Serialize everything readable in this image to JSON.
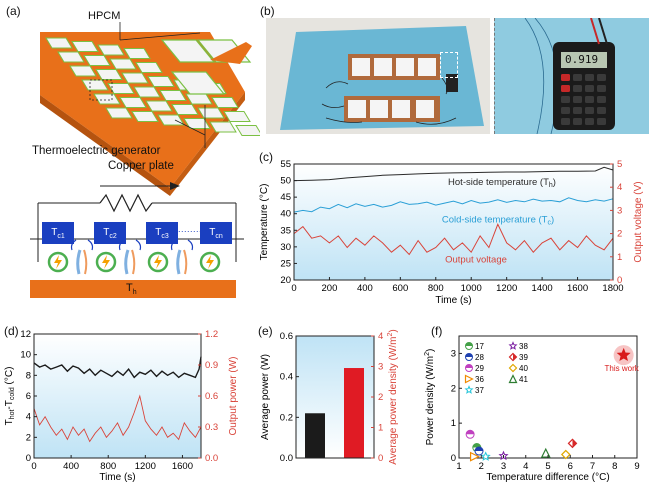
{
  "panel_labels": {
    "a": "(a)",
    "b": "(b)",
    "c": "(c)",
    "d": "(d)",
    "e": "(e)",
    "f": "(f)"
  },
  "panel_a": {
    "hpcm_label": "HPCM",
    "teg_label": "Thermoelectric generator",
    "copper_label": "Copper plate",
    "cells": [
      "T",
      "T",
      "T",
      "T"
    ],
    "cell_subs": [
      "c1",
      "c2",
      "c3",
      "cn"
    ],
    "cell_dots": "........",
    "hot_label": "T",
    "hot_sub": "h",
    "colors": {
      "cell": "#1a3fc0",
      "plate": "#e8701a",
      "lightning_ring": "#4caf50",
      "lightning": "#f5a000"
    }
  },
  "panel_b": {
    "display_value": "0.919",
    "colors": {
      "mat": "#6ab7d4",
      "wall": "#e6e4df",
      "copper": "#b06a3c"
    }
  },
  "chart_data": [
    {
      "id": "c",
      "type": "line",
      "xlabel": "Time (s)",
      "ylabel": "Temperature (°C)",
      "y2label": "Output voltage (V)",
      "xlim": [
        0,
        1800
      ],
      "ylim": [
        20,
        55
      ],
      "y2lim": [
        0,
        5
      ],
      "xticks": [
        0,
        200,
        400,
        600,
        800,
        1000,
        1200,
        1400,
        1600,
        1800
      ],
      "yticks": [
        20,
        25,
        30,
        35,
        40,
        45,
        50,
        55
      ],
      "y2ticks": [
        0,
        1,
        2,
        3,
        4,
        5
      ],
      "series": [
        {
          "name": "Hot-side temperature (T",
          "sub": "h",
          "close": ")",
          "axis": "left",
          "color": "#2b2b2b",
          "x": [
            0,
            100,
            200,
            300,
            400,
            500,
            600,
            700,
            800,
            900,
            1000,
            1100,
            1200,
            1300,
            1400,
            1500,
            1600,
            1700,
            1750,
            1800
          ],
          "y": [
            50.0,
            50.1,
            50.3,
            50.8,
            51.2,
            51.6,
            51.8,
            52.0,
            52.2,
            52.3,
            52.4,
            52.5,
            52.6,
            52.6,
            52.7,
            52.8,
            52.8,
            52.9,
            54.0,
            53.2
          ]
        },
        {
          "name": "Cold-side temperature (T",
          "sub": "c",
          "close": ")",
          "axis": "left",
          "color": "#2a9fd6",
          "x": [
            0,
            50,
            100,
            150,
            200,
            250,
            300,
            350,
            400,
            450,
            500,
            550,
            600,
            650,
            700,
            750,
            800,
            850,
            900,
            950,
            1000,
            1050,
            1100,
            1150,
            1200,
            1250,
            1300,
            1350,
            1400,
            1450,
            1500,
            1550,
            1600,
            1650,
            1700,
            1750,
            1800
          ],
          "y": [
            40.5,
            41.0,
            40.6,
            42.0,
            41.5,
            42.8,
            41.8,
            43.0,
            42.2,
            42.8,
            42.0,
            42.5,
            43.6,
            42.8,
            43.0,
            43.5,
            42.6,
            43.2,
            43.8,
            43.0,
            44.0,
            43.2,
            43.5,
            44.2,
            43.4,
            44.0,
            43.6,
            44.4,
            43.8,
            44.0,
            43.6,
            44.8,
            44.0,
            43.6,
            44.2,
            43.8,
            44.5
          ]
        },
        {
          "name": "Output voltage",
          "axis": "right",
          "color": "#d9443a",
          "x": [
            0,
            50,
            100,
            150,
            200,
            250,
            300,
            350,
            400,
            450,
            500,
            550,
            600,
            650,
            700,
            750,
            800,
            850,
            900,
            950,
            1000,
            1050,
            1100,
            1150,
            1200,
            1250,
            1300,
            1350,
            1400,
            1450,
            1500,
            1550,
            1600,
            1650,
            1700,
            1750,
            1800
          ],
          "y": [
            2.0,
            2.3,
            1.8,
            1.9,
            1.6,
            1.9,
            1.4,
            1.8,
            1.5,
            1.9,
            1.6,
            1.2,
            1.5,
            1.1,
            1.7,
            1.2,
            1.4,
            1.8,
            1.3,
            1.6,
            1.2,
            1.9,
            1.4,
            2.4,
            1.6,
            1.3,
            1.7,
            1.2,
            1.6,
            1.8,
            1.3,
            1.7,
            1.4,
            1.9,
            1.5,
            1.3,
            1.8
          ]
        }
      ],
      "background": "#e6f4fb"
    },
    {
      "id": "d",
      "type": "line",
      "xlabel": "Time (s)",
      "ylabel": "T",
      "ylabel_sub1": "hot",
      "ylabel_mid": "-T",
      "ylabel_sub2": "cold",
      "ylabel_unit": " (°C)",
      "y2label": "Output power (W)",
      "xlim": [
        0,
        1800
      ],
      "ylim": [
        0,
        12
      ],
      "y2lim": [
        0.0,
        1.2
      ],
      "xticks": [
        0,
        400,
        800,
        1200,
        1600
      ],
      "yticks": [
        0,
        2,
        4,
        6,
        8,
        10,
        12
      ],
      "y2ticks": [
        0.0,
        0.3,
        0.6,
        0.9,
        1.2
      ],
      "y2ticklabels": [
        "0.0",
        "0.3",
        "0.6",
        "0.9",
        "1.2"
      ],
      "series": [
        {
          "name": "",
          "axis": "left",
          "color": "#1b1b1b",
          "x": [
            0,
            60,
            120,
            180,
            240,
            300,
            360,
            420,
            480,
            540,
            600,
            660,
            720,
            780,
            840,
            900,
            960,
            1020,
            1080,
            1140,
            1200,
            1260,
            1320,
            1380,
            1440,
            1500,
            1560,
            1620,
            1680,
            1740,
            1780,
            1800
          ],
          "y": [
            9.2,
            8.8,
            9.0,
            8.6,
            8.8,
            9.0,
            8.4,
            8.9,
            8.7,
            8.2,
            8.6,
            8.0,
            8.5,
            8.2,
            7.9,
            8.4,
            8.0,
            8.6,
            7.8,
            8.3,
            8.1,
            8.5,
            7.9,
            8.4,
            8.0,
            8.3,
            7.8,
            8.2,
            8.0,
            7.8,
            8.6,
            9.8
          ]
        },
        {
          "name": "",
          "axis": "right",
          "color": "#d9443a",
          "x": [
            0,
            60,
            120,
            180,
            240,
            300,
            360,
            420,
            480,
            540,
            600,
            660,
            720,
            780,
            840,
            900,
            960,
            1020,
            1080,
            1140,
            1200,
            1260,
            1320,
            1380,
            1440,
            1500,
            1560,
            1620,
            1680,
            1740,
            1800
          ],
          "y": [
            0.48,
            0.32,
            0.4,
            0.3,
            0.22,
            0.28,
            0.18,
            0.3,
            0.22,
            0.28,
            0.16,
            0.24,
            0.3,
            0.2,
            0.26,
            0.34,
            0.22,
            0.3,
            0.44,
            0.6,
            0.36,
            0.28,
            0.22,
            0.3,
            0.2,
            0.24,
            0.18,
            0.34,
            0.26,
            0.2,
            0.3
          ]
        }
      ],
      "background": "#e6f4fb"
    },
    {
      "id": "e",
      "type": "bar",
      "categories": [
        "Average power",
        "Average power density"
      ],
      "ylabel": "Average power (W)",
      "y2label": "Average power density (W/m",
      "y2label_sup": "2",
      "y2label_close": ")",
      "ylim": [
        0,
        0.6
      ],
      "y2lim": [
        0,
        4
      ],
      "yticks": [
        0.0,
        0.2,
        0.4,
        0.6
      ],
      "yticklabels": [
        "0.0",
        "0.2",
        "0.4",
        "0.6"
      ],
      "y2ticks": [
        0,
        1,
        2,
        3,
        4
      ],
      "values": [
        0.22,
        2.95
      ],
      "colors": [
        "#1b1b1b",
        "#e01b24"
      ],
      "background": "#e6f4fb"
    },
    {
      "id": "f",
      "type": "scatter",
      "xlabel": "Temperature difference (°C)",
      "ylabel": "Power density (W/m",
      "ylabel_sup": "2",
      "ylabel_close": ")",
      "xlim": [
        1,
        9
      ],
      "ylim": [
        0,
        3.5
      ],
      "xticks": [
        1,
        2,
        3,
        4,
        5,
        6,
        7,
        8,
        9
      ],
      "yticks": [
        0,
        1,
        2,
        3
      ],
      "points": [
        {
          "ref": "17",
          "x": 1.8,
          "y": 0.3,
          "color": "#43a047",
          "marker": "circle-half"
        },
        {
          "ref": "28",
          "x": 1.9,
          "y": 0.2,
          "color": "#1e40b0",
          "marker": "circle-half"
        },
        {
          "ref": "29",
          "x": 1.5,
          "y": 0.68,
          "color": "#c040c0",
          "marker": "circle-half"
        },
        {
          "ref": "36",
          "x": 1.7,
          "y": 0.04,
          "color": "#f08a00",
          "marker": "triangle-right"
        },
        {
          "ref": "37",
          "x": 2.2,
          "y": 0.04,
          "color": "#26c6da",
          "marker": "star-open"
        },
        {
          "ref": "38",
          "x": 3.0,
          "y": 0.06,
          "color": "#7b1fa2",
          "marker": "star-open"
        },
        {
          "ref": "39",
          "x": 6.1,
          "y": 0.42,
          "color": "#d62828",
          "marker": "diamond-half"
        },
        {
          "ref": "40",
          "x": 5.8,
          "y": 0.1,
          "color": "#e0a800",
          "marker": "diamond-open"
        },
        {
          "ref": "41",
          "x": 4.9,
          "y": 0.14,
          "color": "#2e7d32",
          "marker": "triangle-up"
        },
        {
          "ref": "This work",
          "x": 8.4,
          "y": 2.95,
          "color": "#d81b1b",
          "marker": "star"
        }
      ],
      "legend_order": [
        "17",
        "38",
        "28",
        "39",
        "29",
        "40",
        "36",
        "41",
        "37"
      ],
      "this_work_label": "This work",
      "background": "#ffffff"
    }
  ]
}
